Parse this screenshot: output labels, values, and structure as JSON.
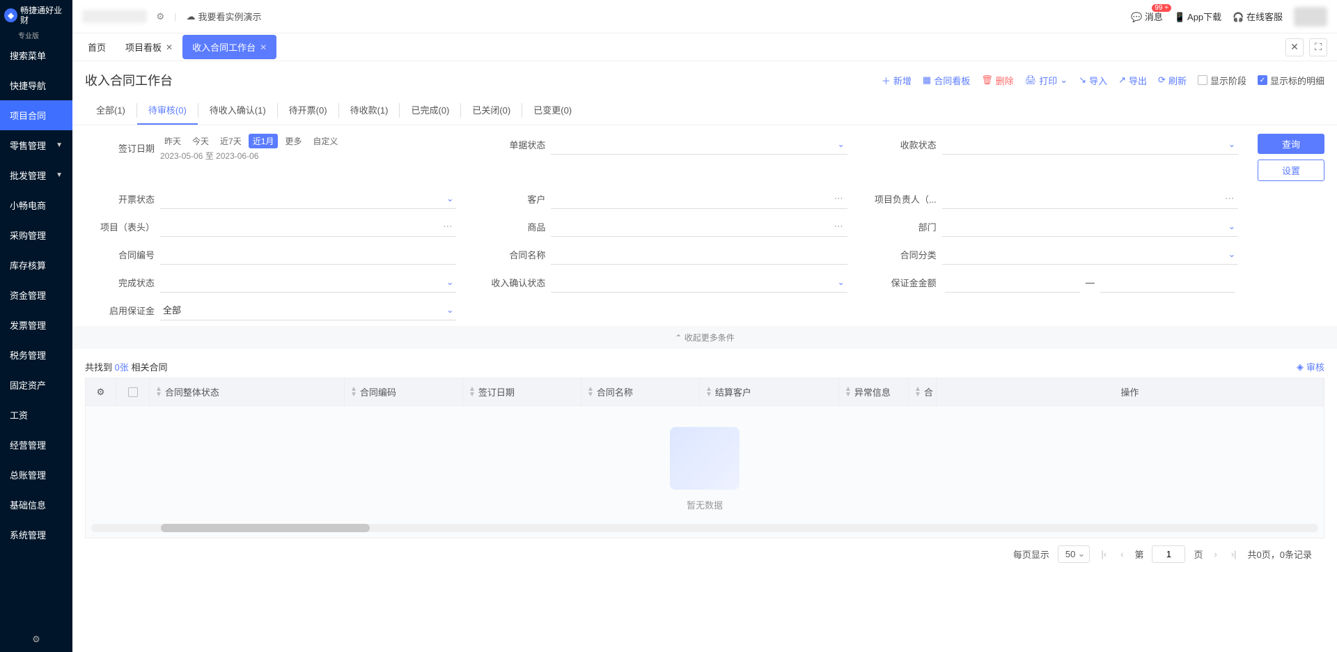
{
  "brand": {
    "name": "畅捷通好业财",
    "edition": "专业版"
  },
  "sidebar": {
    "items": [
      {
        "label": "搜索菜单",
        "arrow": false
      },
      {
        "label": "快捷导航",
        "arrow": false
      },
      {
        "label": "项目合同",
        "arrow": false,
        "active": true
      },
      {
        "label": "零售管理",
        "arrow": true
      },
      {
        "label": "批发管理",
        "arrow": true
      },
      {
        "label": "小畅电商",
        "arrow": false
      },
      {
        "label": "采购管理",
        "arrow": false
      },
      {
        "label": "库存核算",
        "arrow": false
      },
      {
        "label": "资金管理",
        "arrow": false
      },
      {
        "label": "发票管理",
        "arrow": false
      },
      {
        "label": "税务管理",
        "arrow": false
      },
      {
        "label": "固定资产",
        "arrow": false
      },
      {
        "label": "工资",
        "arrow": false
      },
      {
        "label": "经营管理",
        "arrow": false
      },
      {
        "label": "总账管理",
        "arrow": false
      },
      {
        "label": "基础信息",
        "arrow": false
      },
      {
        "label": "系统管理",
        "arrow": false
      }
    ]
  },
  "topbar": {
    "demo": "我要看实例演示",
    "msg": "消息",
    "msg_badge": "99 +",
    "app": "App下载",
    "service": "在线客服"
  },
  "tabs": [
    {
      "label": "首页",
      "closable": false
    },
    {
      "label": "项目看板",
      "closable": true
    },
    {
      "label": "收入合同工作台",
      "closable": true,
      "active": true
    }
  ],
  "page": {
    "title": "收入合同工作台"
  },
  "toolbar": {
    "add": "新增",
    "kanban": "合同看板",
    "del": "删除",
    "print": "打印",
    "import": "导入",
    "export": "导出",
    "refresh": "刷新",
    "show_stage": "显示阶段",
    "show_detail": "显示标的明细"
  },
  "status_tabs": [
    {
      "label": "全部(1)"
    },
    {
      "label": "待审核(0)",
      "active": true
    },
    {
      "label": "待收入确认(1)"
    },
    {
      "label": "待开票(0)"
    },
    {
      "label": "待收款(1)"
    },
    {
      "label": "已完成(0)"
    },
    {
      "label": "已关闭(0)"
    },
    {
      "label": "已变更(0)"
    }
  ],
  "filters": {
    "sign_date": {
      "label": "签订日期",
      "chips": [
        "昨天",
        "今天",
        "近7天",
        "近1月",
        "更多",
        "自定义"
      ],
      "active": "近1月",
      "range": "2023-05-06 至 2023-06-06"
    },
    "doc_status": {
      "label": "单据状态"
    },
    "receipt_status": {
      "label": "收款状态"
    },
    "invoice_status": {
      "label": "开票状态"
    },
    "customer": {
      "label": "客户"
    },
    "pm": {
      "label": "项目负责人（..."
    },
    "project": {
      "label": "项目（表头）"
    },
    "product": {
      "label": "商品"
    },
    "dept": {
      "label": "部门"
    },
    "contract_no": {
      "label": "合同编号"
    },
    "contract_name": {
      "label": "合同名称"
    },
    "contract_type": {
      "label": "合同分类"
    },
    "complete_status": {
      "label": "完成状态"
    },
    "income_confirm": {
      "label": "收入确认状态"
    },
    "deposit_amt": {
      "label": "保证金金额",
      "sep": "—"
    },
    "enable_deposit": {
      "label": "启用保证金",
      "value": "全部"
    },
    "query_btn": "查询",
    "setting_btn": "设置",
    "collapse": "收起更多条件"
  },
  "results": {
    "summary_pre": "共找到 ",
    "count": "0张",
    "summary_post": " 相关合同",
    "audit": "审核",
    "columns": [
      "合同整体状态",
      "合同编码",
      "签订日期",
      "合同名称",
      "结算客户",
      "异常信息",
      "合"
    ],
    "action_col": "操作",
    "empty": "暂无数据"
  },
  "pager": {
    "per_page_label": "每页显示",
    "per_page": "50",
    "page_pre": "第",
    "page": "1",
    "page_post": "页",
    "total": "共0页，0条记录"
  }
}
